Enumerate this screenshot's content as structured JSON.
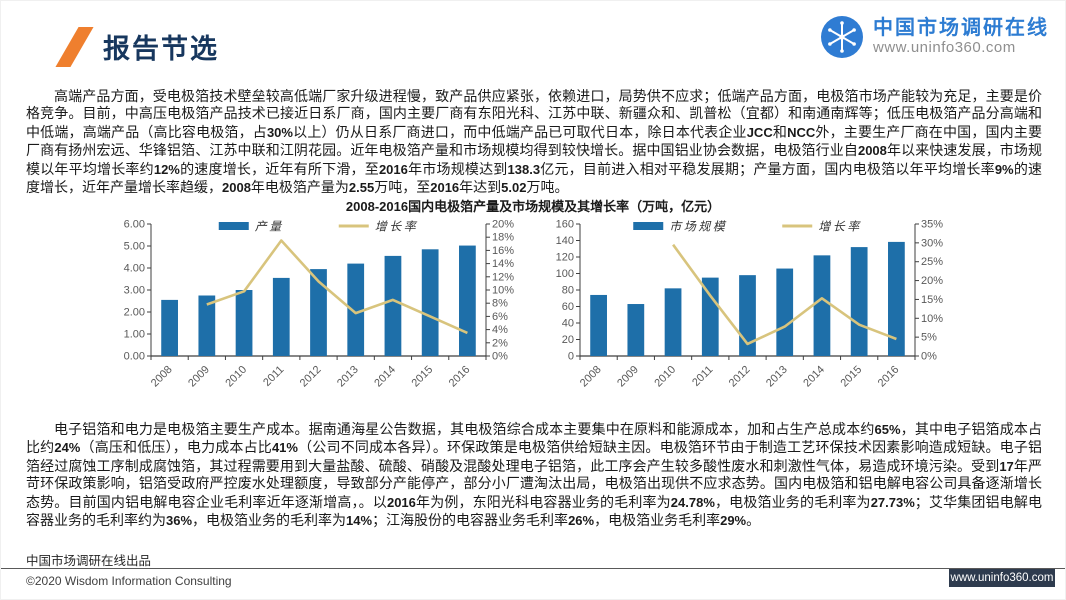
{
  "header": {
    "title": "报告节选",
    "logo": {
      "name": "中国市场调研在线",
      "url": "www.uninfo360.com",
      "icon": "snowflake-icon"
    }
  },
  "chart_title": "2008-2016国内电极箔产量及市场规模及其增长率（万吨，亿元）",
  "paragraphs": {
    "p1": [
      {
        "t": "高端产品方面，受电极箔技术壁垒较高低端厂家升级进程慢，致产品供应紧张，依赖进口，局势供不应求；低端产品方面，电极箔市场产能较为充足，主要是价格竞争。目前，中高压电极箔产品技术已接近日系厂商，国内主要厂商有东阳光科、江苏中联、新疆众和、凯普松（宜都）和南通南辉等；低压电极箔产品分高端和中低端，高端产品（高比容电极箔，占",
        "b": false
      },
      {
        "t": "30%",
        "b": true
      },
      {
        "t": "以上）仍从日系厂商进口，而中低端产品已可取代日本，除日本代表企业",
        "b": false
      },
      {
        "t": "JCC",
        "b": true
      },
      {
        "t": "和",
        "b": false
      },
      {
        "t": "NCC",
        "b": true
      },
      {
        "t": "外，主要生产厂商在中国，国内主要厂商有扬州宏远、华锋铝箔、江苏中联和江阴花园。近年电极箔产量和市场规模均得到较快增长。据中国铝业协会数据，电极箔行业自",
        "b": false
      },
      {
        "t": "2008",
        "b": true
      },
      {
        "t": "年以来快速发展，市场规模以年平均增长率约",
        "b": false
      },
      {
        "t": "12%",
        "b": true
      },
      {
        "t": "的速度增长，近年有所下滑，至",
        "b": false
      },
      {
        "t": "2016",
        "b": true
      },
      {
        "t": "年市场规模达到",
        "b": false
      },
      {
        "t": "138.3",
        "b": true
      },
      {
        "t": "亿元，目前进入相对平稳发展期；产量方面，国内电极箔以年平均增长率",
        "b": false
      },
      {
        "t": "9%",
        "b": true
      },
      {
        "t": "的速度增长，近年产量增长率趋缓，",
        "b": false
      },
      {
        "t": "2008",
        "b": true
      },
      {
        "t": "年电极箔产量为",
        "b": false
      },
      {
        "t": "2.55",
        "b": true
      },
      {
        "t": "万吨，至",
        "b": false
      },
      {
        "t": "2016",
        "b": true
      },
      {
        "t": "年达到",
        "b": false
      },
      {
        "t": "5.02",
        "b": true
      },
      {
        "t": "万吨。",
        "b": false
      }
    ],
    "p2": [
      {
        "t": "电子铝箔和电力是电极箔主要生产成本。据南通海星公告数据，其电极箔综合成本主要集中在原料和能源成本，加和占生产总成本约",
        "b": false
      },
      {
        "t": "65%",
        "b": true
      },
      {
        "t": "，其中电子铝箔成本占比约",
        "b": false
      },
      {
        "t": "24%",
        "b": true
      },
      {
        "t": "（高压和低压），电力成本占比",
        "b": false
      },
      {
        "t": "41%",
        "b": true
      },
      {
        "t": "（公司不同成本各异）。环保政策是电极箔供给短缺主因。电极箔环节由于制造工艺环保技术因素影响造成短缺。电子铝箔经过腐蚀工序制成腐蚀箔，其过程需要用到大量盐酸、硫酸、硝酸及混酸处理电子铝箔，此工序会产生较多酸性废水和刺激性气体，易造成环境污染。受到",
        "b": false
      },
      {
        "t": "17",
        "b": true
      },
      {
        "t": "年严苛环保政策影响，铝箔受政府严控废水处理额度，导致部分产能停产，部分小厂遭淘汰出局，电极箔出现供不应求态势。国内电极箔和铝电解电容公司具备逐渐增长态势。目前国内铝电解电容企业毛利率近年逐渐增高，。以",
        "b": false
      },
      {
        "t": "2016",
        "b": true
      },
      {
        "t": "年为例，东阳光科电容器业务的毛利率为",
        "b": false
      },
      {
        "t": "24.78%",
        "b": true
      },
      {
        "t": "，电极箔业务的毛利率为",
        "b": false
      },
      {
        "t": "27.73%",
        "b": true
      },
      {
        "t": "；艾华集团铝电解电容器业务的毛利率约为",
        "b": false
      },
      {
        "t": "36%",
        "b": true
      },
      {
        "t": "，电极箔业务的毛利率为",
        "b": false
      },
      {
        "t": "14%",
        "b": true
      },
      {
        "t": "；江海股份的电容器业务毛利率",
        "b": false
      },
      {
        "t": "26%",
        "b": true
      },
      {
        "t": "，电极箔业务毛利率",
        "b": false
      },
      {
        "t": "29%",
        "b": true
      },
      {
        "t": "。",
        "b": false
      }
    ]
  },
  "chart_data": [
    {
      "type": "bar",
      "title": "国内电极箔产量及其增长率",
      "categories": [
        "2008",
        "2009",
        "2010",
        "2011",
        "2012",
        "2013",
        "2014",
        "2015",
        "2016"
      ],
      "series": [
        {
          "name": "产量",
          "type": "bar",
          "axis": "left",
          "color": "#1e6fa9",
          "values": [
            2.55,
            2.75,
            3.0,
            3.55,
            3.95,
            4.2,
            4.55,
            4.85,
            5.02
          ]
        },
        {
          "name": "增长率",
          "type": "line",
          "axis": "right",
          "color": "#d8c47d",
          "values": [
            null,
            7.8,
            9.8,
            17.5,
            11.3,
            6.5,
            8.5,
            6.0,
            3.5
          ]
        }
      ],
      "left_axis": {
        "min": 0,
        "max": 6,
        "step": 1,
        "decimals": 2,
        "suffix": "",
        "unit": "万吨"
      },
      "right_axis": {
        "min": 0,
        "max": 20,
        "step": 2,
        "decimals": 0,
        "suffix": "%",
        "unit": ""
      },
      "legend_position": "top",
      "grid": false
    },
    {
      "type": "bar",
      "title": "国内电极箔市场规模及其增长率",
      "categories": [
        "2008",
        "2009",
        "2010",
        "2011",
        "2012",
        "2013",
        "2014",
        "2015",
        "2016"
      ],
      "series": [
        {
          "name": "市场规模",
          "type": "bar",
          "axis": "left",
          "color": "#1e6fa9",
          "values": [
            74,
            63,
            82,
            95,
            98,
            106,
            122,
            132,
            138.3
          ]
        },
        {
          "name": "增长率",
          "type": "line",
          "axis": "right",
          "color": "#d8c47d",
          "values": [
            null,
            null,
            29.5,
            16.0,
            3.2,
            7.8,
            15.3,
            8.3,
            4.5
          ]
        }
      ],
      "left_axis": {
        "min": 0,
        "max": 160,
        "step": 20,
        "decimals": 0,
        "suffix": "",
        "unit": "亿元"
      },
      "right_axis": {
        "min": 0,
        "max": 35,
        "step": 5,
        "decimals": 0,
        "suffix": "%",
        "unit": ""
      },
      "legend_position": "top",
      "grid": false
    }
  ],
  "footer": {
    "credit": "中国市场调研在线出品",
    "copyright": "©2020 Wisdom Information Consulting",
    "badge_url": "www.uninfo360.com"
  },
  "colors": {
    "accent_orange": "#ef7f2e",
    "title_navy": "#17375e",
    "logo_blue": "#2d7cd2",
    "bar_blue": "#1e6fa9",
    "line_tan": "#d8c47d",
    "badge_bg": "#2e3b4e",
    "axis_text": "#595959"
  }
}
